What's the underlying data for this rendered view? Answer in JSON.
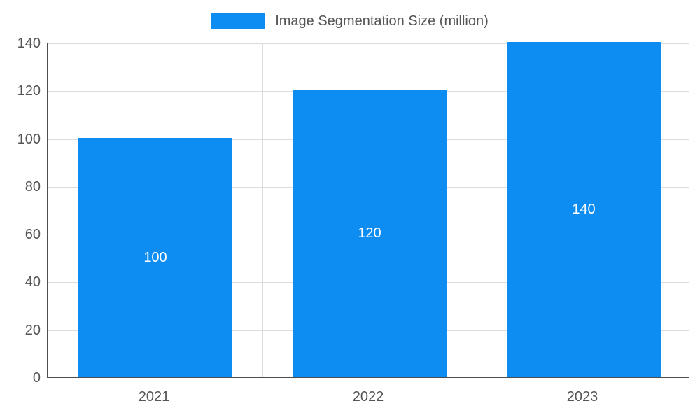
{
  "chart_data": {
    "type": "bar",
    "title": "Image Segmentation Size (million)",
    "categories": [
      "2021",
      "2022",
      "2023"
    ],
    "values": [
      100,
      120,
      140
    ],
    "data_labels": [
      "100",
      "120",
      "140"
    ],
    "xlabel": "",
    "ylabel": "",
    "ylim": [
      0,
      140
    ],
    "yticks": [
      0,
      20,
      40,
      60,
      80,
      100,
      120,
      140
    ],
    "y_tick_labels": [
      "0",
      "20",
      "40",
      "60",
      "80",
      "100",
      "120",
      "140"
    ],
    "grid": true,
    "legend_position": "top",
    "colors": {
      "bar": "#0d8df2",
      "data_label": "#ffffff",
      "gridline": "#dcdcdc",
      "axis_line": "#4e4e4e",
      "tick_text": "#555555",
      "legend_text": "#555555",
      "background": "#ffffff"
    }
  }
}
